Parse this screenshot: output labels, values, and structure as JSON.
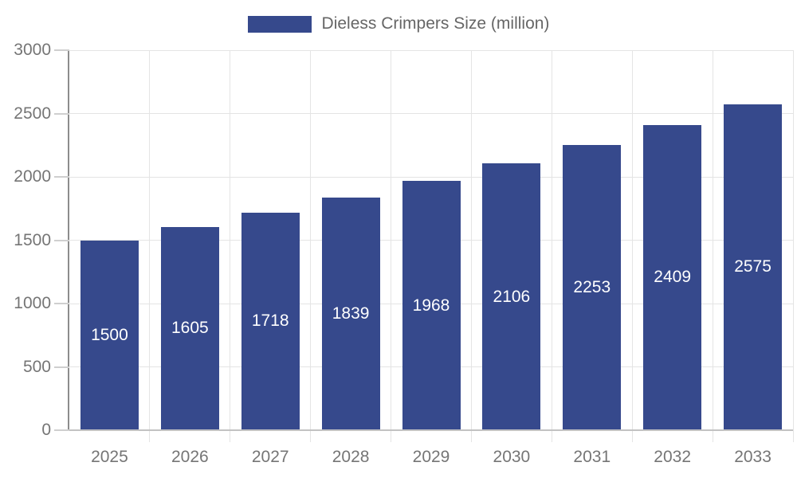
{
  "chart_data": {
    "type": "bar",
    "title": "",
    "legend": {
      "label": "Dieless Crimpers Size (million)",
      "position": "top"
    },
    "series_name": "Dieless Crimpers Size (million)",
    "categories": [
      "2025",
      "2026",
      "2027",
      "2028",
      "2029",
      "2030",
      "2031",
      "2032",
      "2033"
    ],
    "values": [
      1500,
      1605,
      1718,
      1839,
      1968,
      2106,
      2253,
      2409,
      2575
    ],
    "xlabel": "",
    "ylabel": "",
    "ylim": [
      0,
      3000
    ],
    "y_ticks": [
      0,
      500,
      1000,
      1500,
      2000,
      2500,
      3000
    ],
    "grid": true,
    "bar_value_labels_inside": true,
    "colors": {
      "bar": "#36498C",
      "bar_label": "#FFFFFF",
      "axis_text": "#757575",
      "legend_text": "#666666",
      "grid_line": "#E4E4E4",
      "y_axis_line": "#8C8C8C",
      "x_axis_line": "#C2C2C2",
      "background": "#FFFFFF"
    }
  }
}
